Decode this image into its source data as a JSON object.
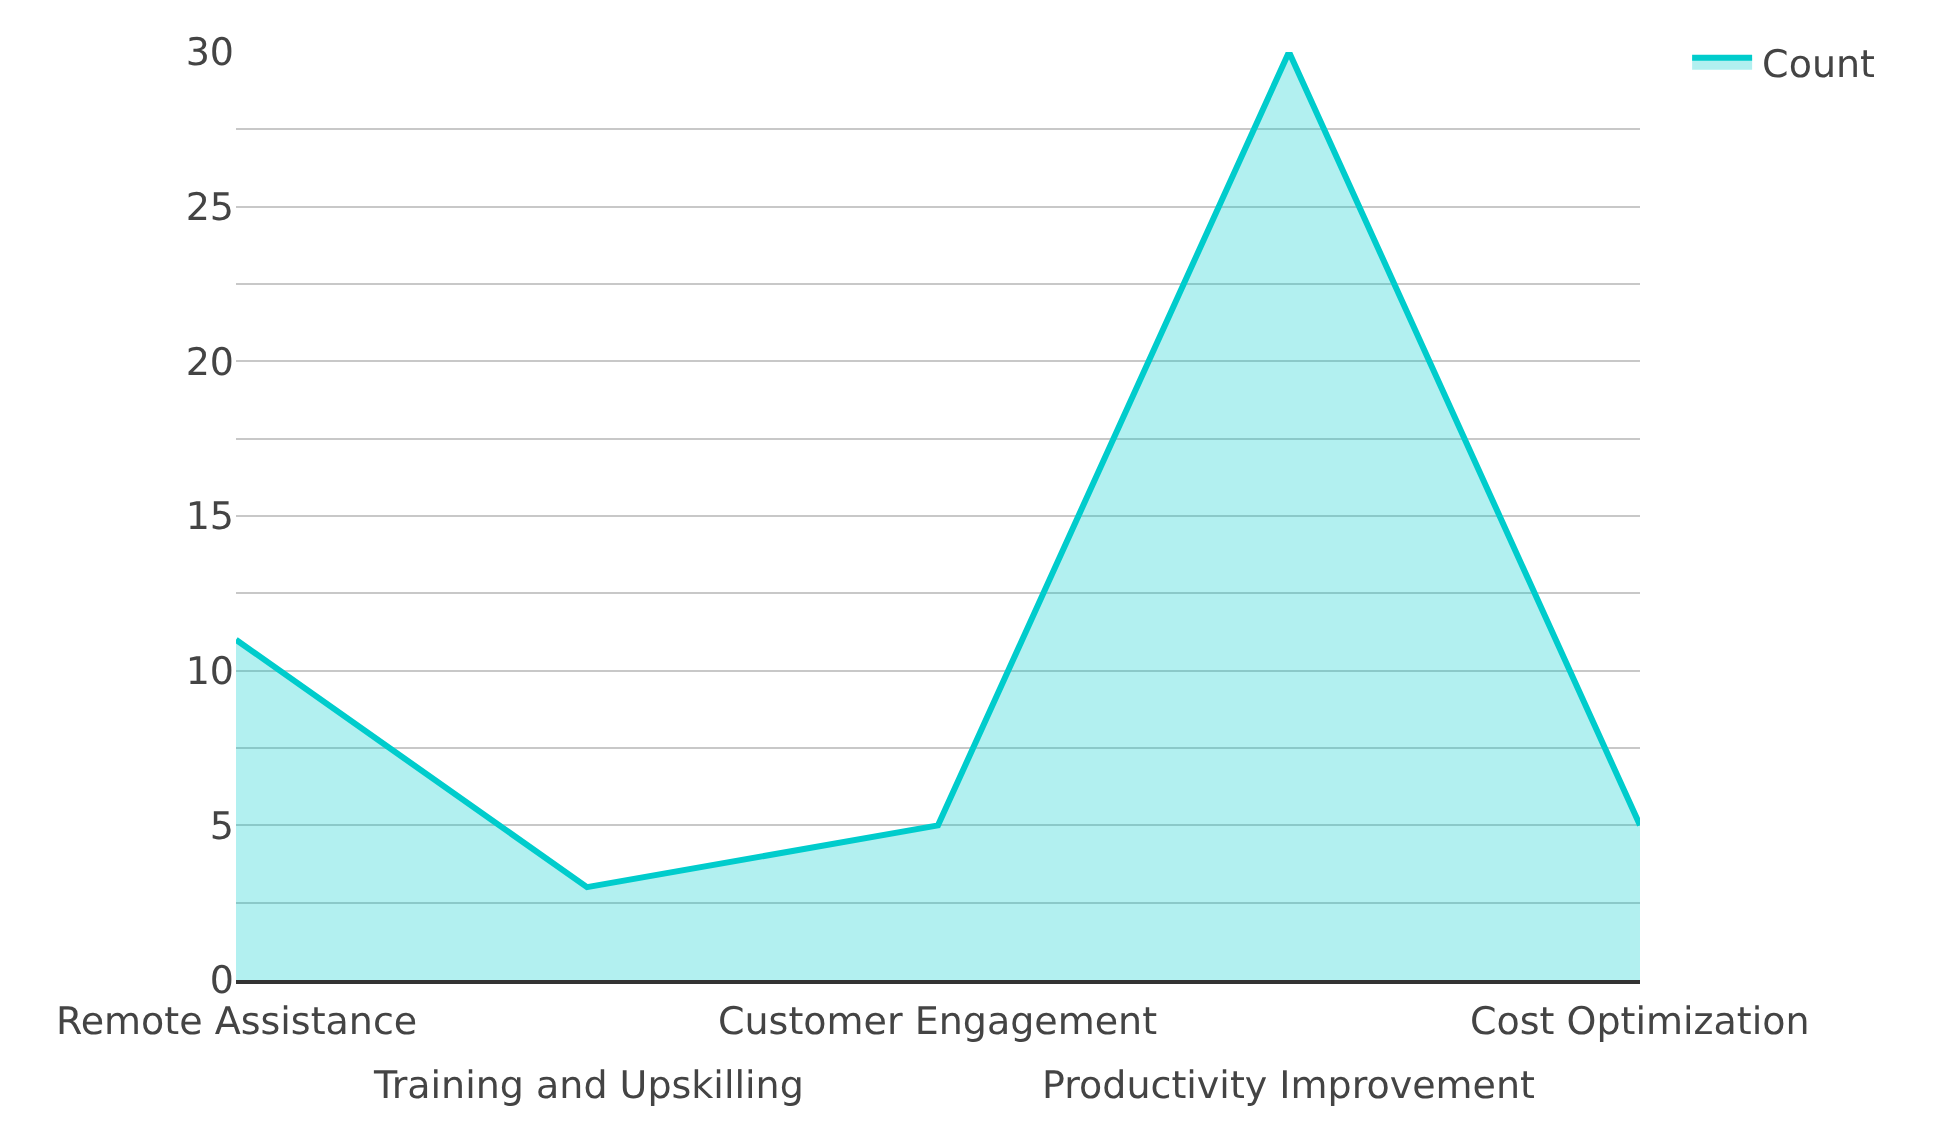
{
  "chart_data": {
    "type": "area",
    "categories": [
      "Remote Assistance",
      "Training and Upskilling",
      "Customer Engagement",
      "Productivity Improvement",
      "Cost Optimization"
    ],
    "series": [
      {
        "name": "Count",
        "color": "#00cccc",
        "values": [
          11,
          3,
          5,
          30,
          5
        ]
      }
    ],
    "ylim": [
      0,
      30
    ],
    "yticks": [
      0,
      {
        "value": 2.5,
        "label": null
      },
      5,
      {
        "value": 7.5,
        "label": null
      },
      10,
      {
        "value": 12.5,
        "label": null
      },
      15,
      {
        "value": 17.5,
        "label": null
      },
      20,
      {
        "value": 22.5,
        "label": null
      },
      25,
      {
        "value": 27.5,
        "label": null
      },
      30
    ],
    "grid": "y",
    "legend": "top right",
    "marker": "none",
    "line_style": "solid"
  }
}
